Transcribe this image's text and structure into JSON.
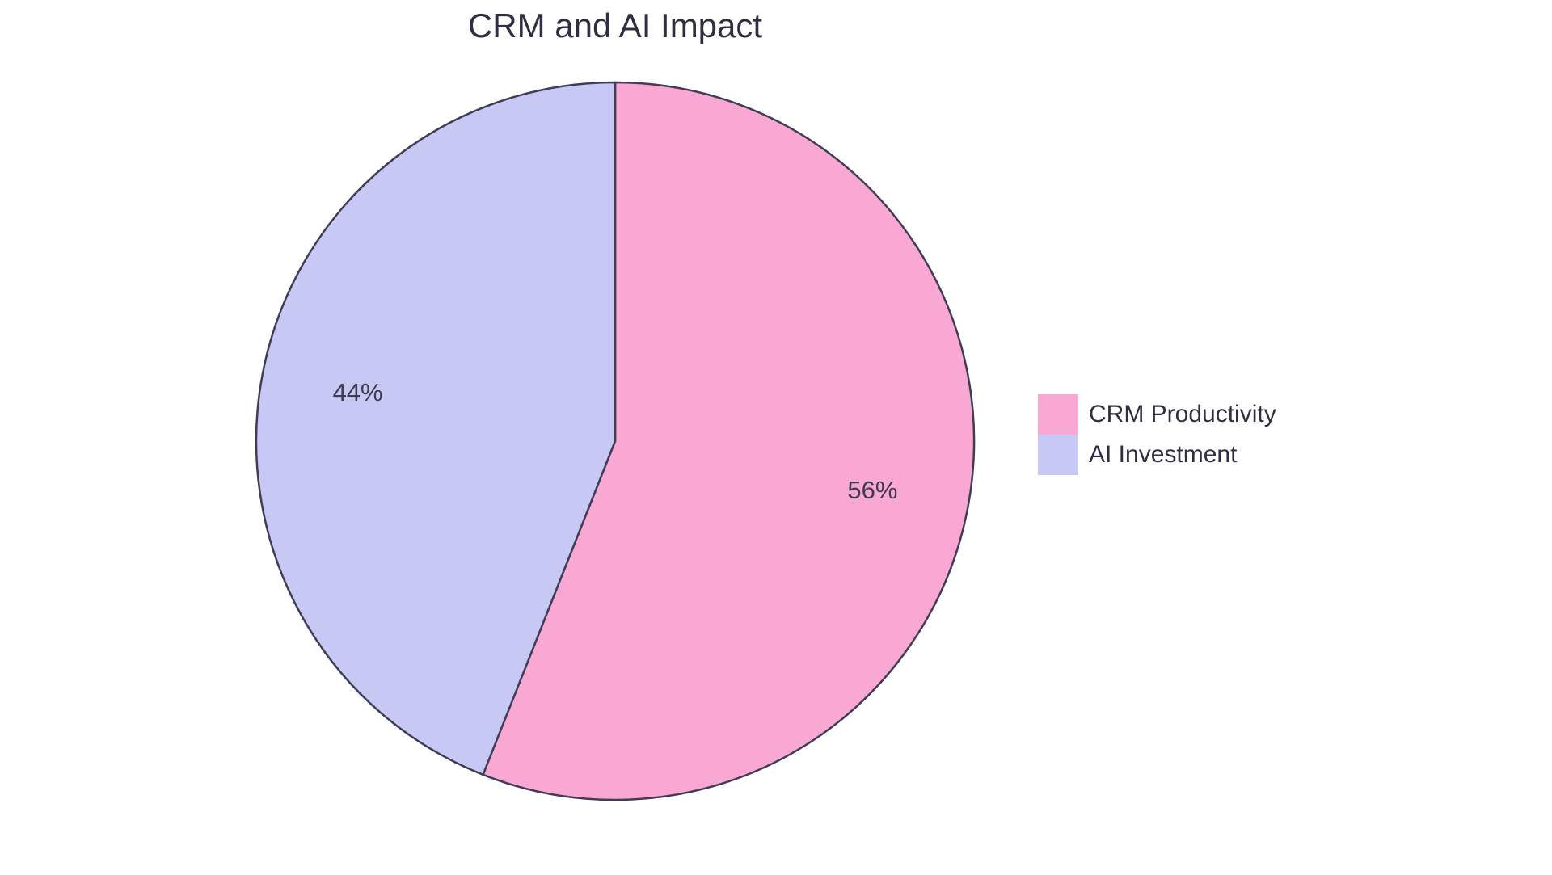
{
  "chart_data": {
    "type": "pie",
    "title": "CRM and AI Impact",
    "labels": [
      "CRM Productivity",
      "AI Investment"
    ],
    "values": [
      56,
      44
    ],
    "value_labels": [
      "56%",
      "44%"
    ],
    "colors": [
      "#F9A8D4",
      "#C7C9F4"
    ],
    "stroke_color": "#3F3C56",
    "title_color": "#2F2E41",
    "label_color": "#3D3B52",
    "background_color": "#FFFFFF",
    "legend_position": "right",
    "start_angle_deg": 0,
    "direction": "clockwise"
  }
}
